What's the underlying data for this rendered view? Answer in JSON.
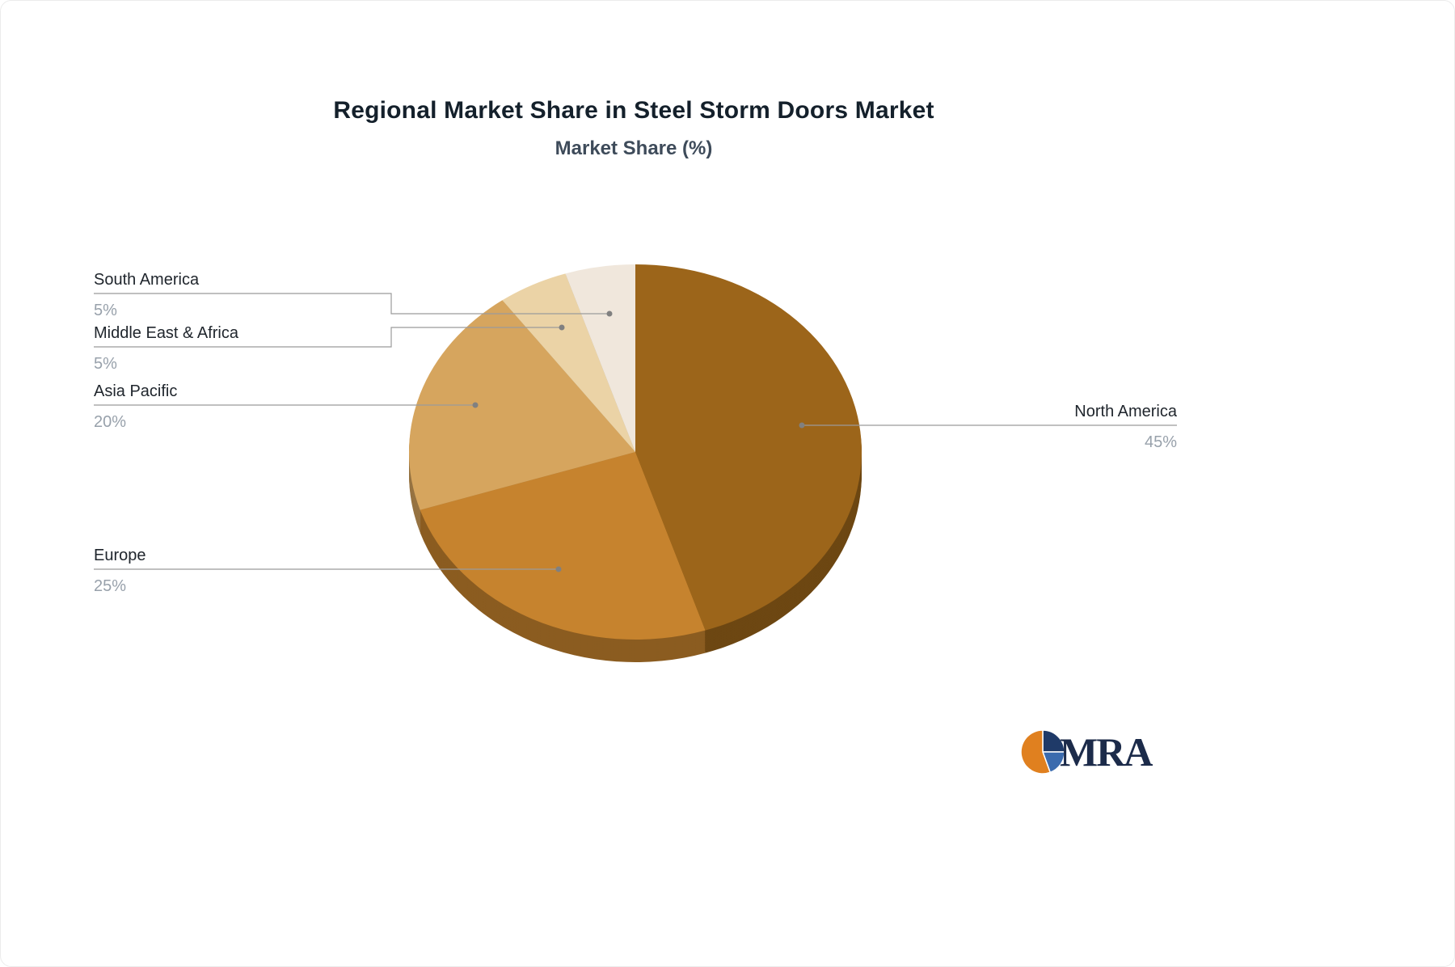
{
  "chart_data": {
    "type": "pie",
    "title": "Regional Market Share in Steel Storm Doors Market",
    "subtitle": "Market Share (%)",
    "unit": "%",
    "labels": [
      "North America",
      "Europe",
      "Asia Pacific",
      "Middle East & Africa",
      "South America"
    ],
    "values": [
      45,
      25,
      20,
      5,
      5
    ],
    "value_labels": [
      "45%",
      "25%",
      "20%",
      "5%",
      "5%"
    ],
    "colors": [
      "#9C651A",
      "#C6832E",
      "#D6A55E",
      "#EBD3A6",
      "#F0E7DC"
    ],
    "start_angle_deg": 0,
    "direction": "clockwise",
    "style": "3d",
    "legend_position": "none",
    "label_style": "callout-lines",
    "line_color": "#9b9b9b",
    "dot_color": "#808080"
  },
  "logo": {
    "text": "MRA",
    "orange": "#E0801F",
    "navy": "#1F3A68",
    "blue": "#3B6BAE",
    "text_color": "#1c2b4a"
  }
}
